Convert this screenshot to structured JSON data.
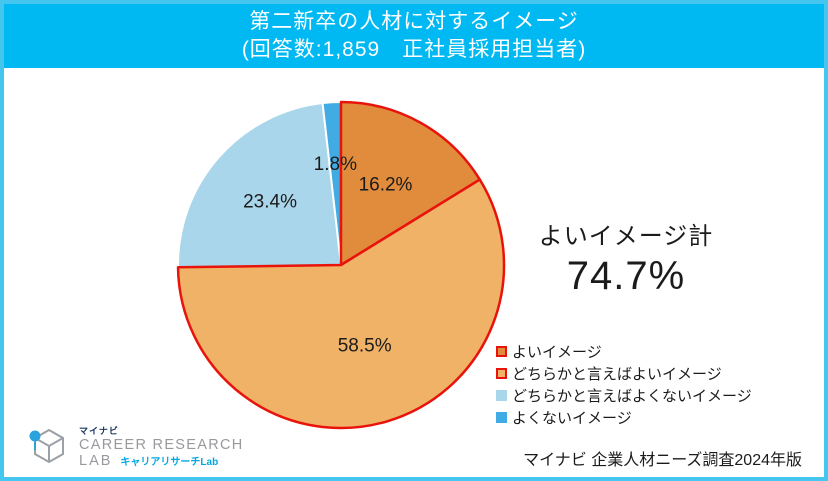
{
  "header": {
    "title_line1": "第二新卒の人材に対するイメージ",
    "title_line2": "(回答数:1,859　正社員採用担当者)"
  },
  "summary": {
    "label": "よいイメージ計",
    "value": "74.7%"
  },
  "legend": [
    {
      "label": "よいイメージ",
      "fill": "#E08C3C",
      "border": "#E8140C"
    },
    {
      "label": "どちらかと言えばよいイメージ",
      "fill": "#F0B266",
      "border": "#E8140C"
    },
    {
      "label": "どちらかと言えばよくないイメージ",
      "fill": "#A9D6EA",
      "border": "#A9D6EA"
    },
    {
      "label": "よくないイメージ",
      "fill": "#41ABE3",
      "border": "#41ABE3"
    }
  ],
  "source": "マイナビ 企業人材ニーズ調査2024年版",
  "logo": {
    "brand_small": "マイナビ",
    "line1": "CAREER RESEARCH",
    "line2": "LAB",
    "line2_sub": "キャリアリサーチLab"
  },
  "chart_data": {
    "type": "pie",
    "title": "第二新卒の人材に対するイメージ",
    "subtitle": "(回答数:1,859　正社員採用担当者)",
    "categories": [
      "よいイメージ",
      "どちらかと言えばよいイメージ",
      "どちらかと言えばよくないイメージ",
      "よくないイメージ"
    ],
    "values": [
      16.2,
      58.5,
      23.4,
      1.8
    ],
    "value_labels": [
      "16.2%",
      "58.5%",
      "23.4%",
      "1.8%"
    ],
    "colors": [
      "#E08C3C",
      "#F0B266",
      "#A9D6EA",
      "#41ABE3"
    ],
    "strokes": [
      "#E8140C",
      "#E8140C",
      "#FFFFFF",
      "#FFFFFF"
    ],
    "start_angle": "top",
    "direction": "clockwise",
    "annotation": {
      "label": "よいイメージ計",
      "value": "74.7%"
    },
    "legend_position": "right-bottom",
    "source": "マイナビ 企業人材ニーズ調査2024年版"
  },
  "colors": {
    "header_cyan": "#00B9F2",
    "frame_border_cyan": "#45C6EF",
    "pie_outline_red": "#E8140C",
    "text_black": "#1B1B1B"
  }
}
